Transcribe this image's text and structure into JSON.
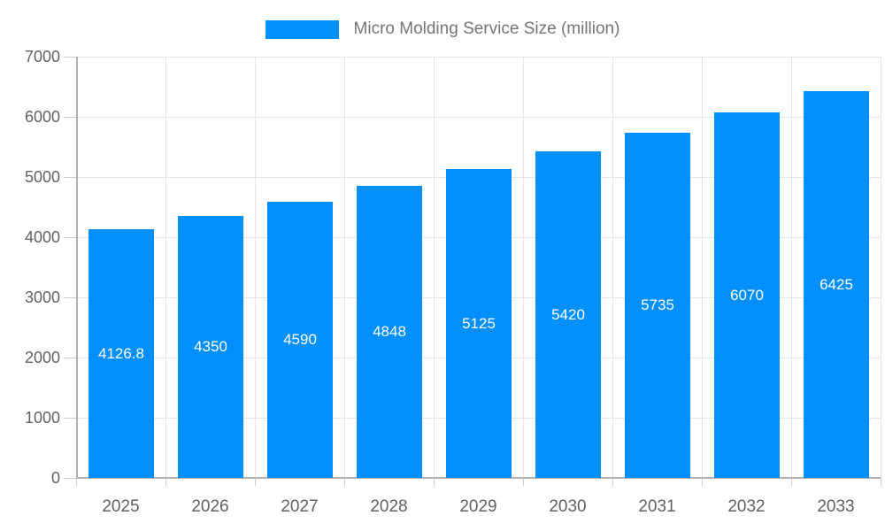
{
  "colors": {
    "bar": "#008FFB",
    "grid": "#e6e6e6",
    "axis_line": "#b0b0b0",
    "tick": "#cccccc",
    "axis_label_text": "#616161",
    "legend_text": "#757575",
    "value_label_text": "#ffffff",
    "background": "#ffffff"
  },
  "legend": {
    "position": "top",
    "swatch": "blue-rect"
  },
  "chart_data": {
    "type": "bar",
    "title": "Micro Molding Service Size (million)",
    "categories": [
      "2025",
      "2026",
      "2027",
      "2028",
      "2029",
      "2030",
      "2031",
      "2032",
      "2033"
    ],
    "values": [
      4126.8,
      4350,
      4590,
      4848,
      5125,
      5420,
      5735,
      6070,
      6425
    ],
    "value_labels": [
      "4126.8",
      "4350",
      "4590",
      "4848",
      "5125",
      "5420",
      "5735",
      "6070",
      "6425"
    ],
    "xlabel": "",
    "ylabel": "",
    "ylim": [
      0,
      7000
    ],
    "yticks": [
      0,
      1000,
      2000,
      3000,
      4000,
      5000,
      6000,
      7000
    ],
    "grid": true,
    "legend_position": "top",
    "value_labels_inside_bars": true
  }
}
